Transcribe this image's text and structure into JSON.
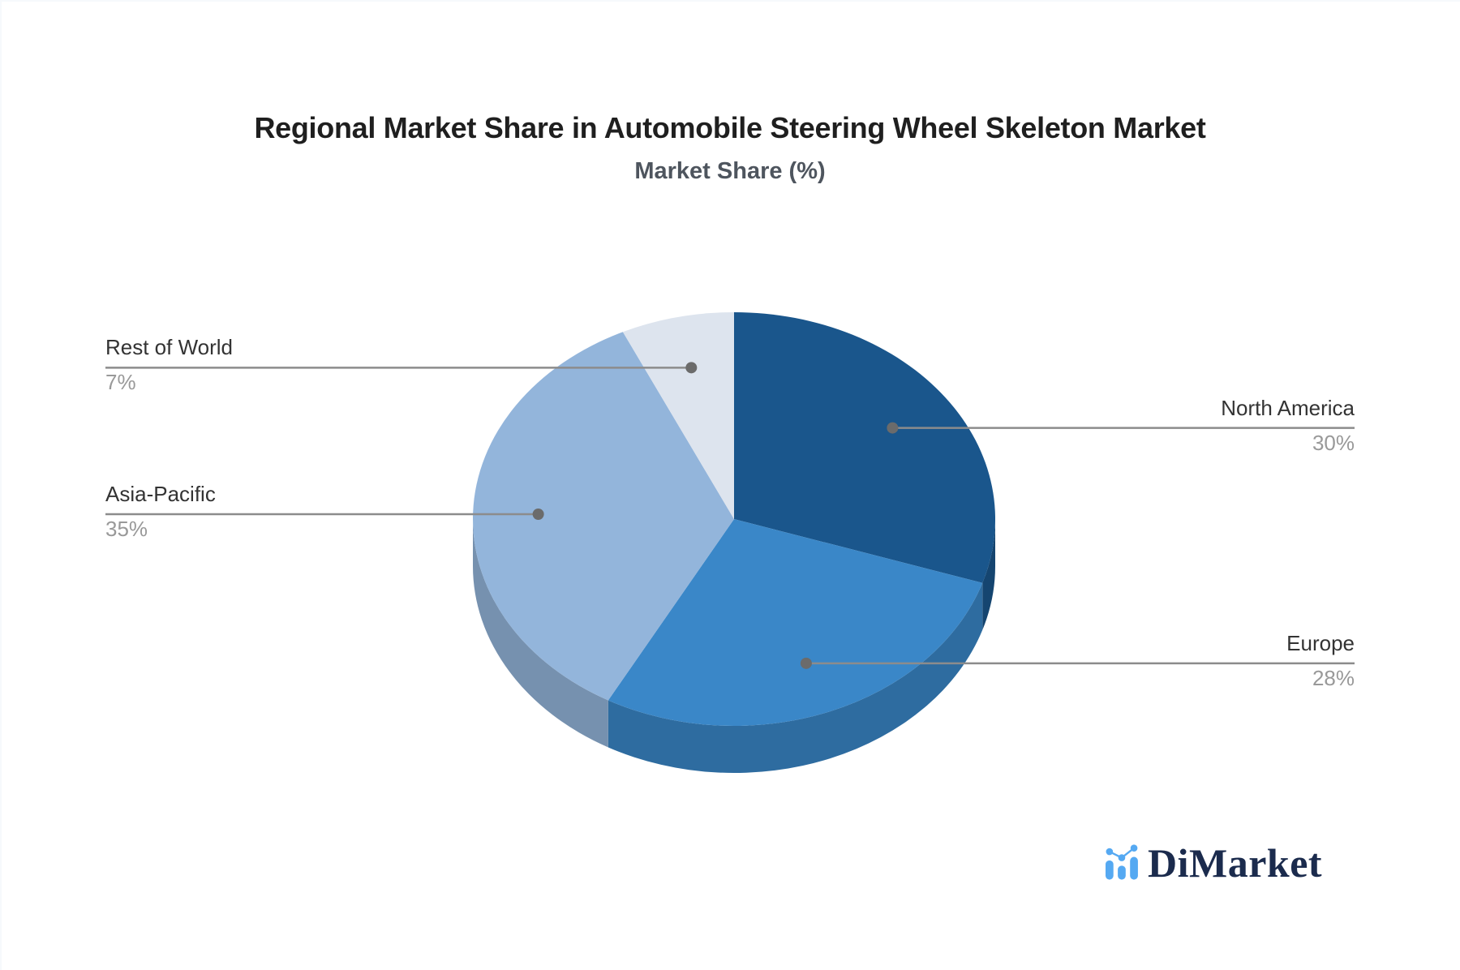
{
  "chart_data": {
    "type": "pie",
    "style": "3d",
    "title": "Regional Market Share in Automobile Steering Wheel Skeleton Market",
    "subtitle": "Market Share (%)",
    "unit": "%",
    "direction": "clockwise",
    "start_angle_deg": 0,
    "legend_position": "outside-callout-labels",
    "categories": [
      "North America",
      "Europe",
      "Asia-Pacific",
      "Rest of World"
    ],
    "values": [
      30,
      28,
      35,
      7
    ],
    "slices": [
      {
        "label": "North America",
        "value": 30,
        "display": "30%",
        "color": "#1a568c"
      },
      {
        "label": "Europe",
        "value": 28,
        "display": "28%",
        "color": "#3a87c8"
      },
      {
        "label": "Asia-Pacific",
        "value": 35,
        "display": "35%",
        "color": "#93b5db"
      },
      {
        "label": "Rest of World",
        "value": 7,
        "display": "7%",
        "color": "#dde4ee"
      }
    ],
    "label_text_color": "#333333",
    "value_text_color": "#999999",
    "callout_line_color": "#8c8c8c",
    "callout_dot_color": "#6b6b6b",
    "background_color": "#ffffff"
  },
  "branding": {
    "logo_text": "DiMarket",
    "logo_text_color": "#1b2b4d",
    "logo_icon": "bar-line-chart-logo-icon",
    "logo_icon_color": "#55a9f2"
  }
}
